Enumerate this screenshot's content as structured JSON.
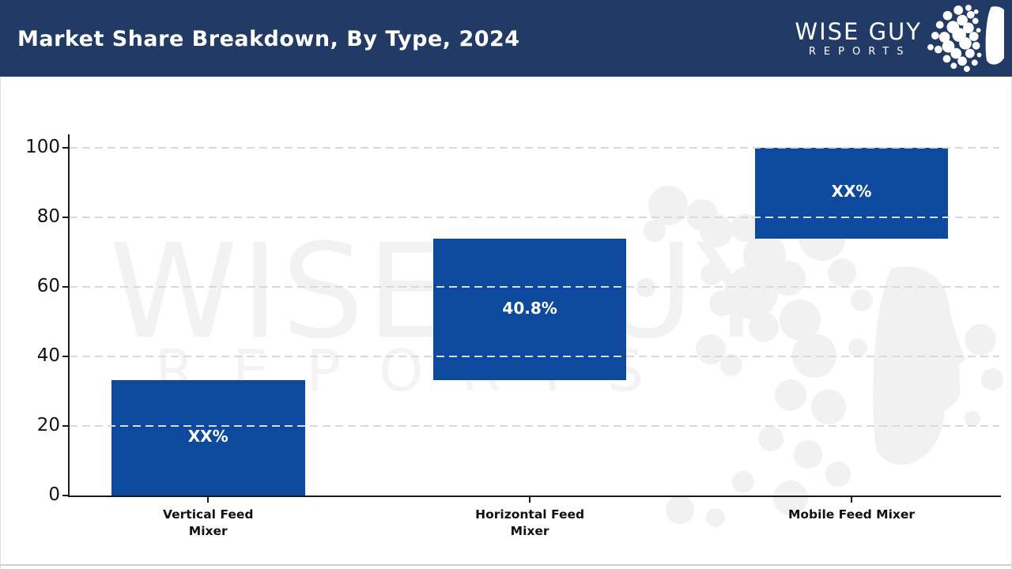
{
  "header": {
    "title": "Market Share Breakdown, By Type, 2024",
    "logo": {
      "line1": "WISE GUY",
      "line2": "REPORTS"
    }
  },
  "watermark": {
    "line1": "WISE GUY",
    "line2": "REPORTS"
  },
  "colors": {
    "header_bg": "#213a66",
    "bar": "#0d4a9e",
    "grid": "#d9d9d9",
    "axis": "#1a1a1a",
    "bar_label_text": "#ffffff",
    "watermark_gray": "#f2f2f2"
  },
  "chart_data": {
    "type": "bar",
    "subtype": "floating-stacked-segments",
    "title": "Market Share Breakdown, By Type, 2024",
    "categories": [
      "Vertical Feed Mixer",
      "Horizontal Feed Mixer",
      "Mobile Feed Mixer"
    ],
    "category_lines": [
      [
        "Vertical Feed",
        "Mixer"
      ],
      [
        "Horizontal Feed",
        "Mixer"
      ],
      [
        "Mobile Feed Mixer"
      ]
    ],
    "series": [
      {
        "name": "Market share (%)",
        "segments": [
          {
            "category": "Vertical Feed Mixer",
            "start": 0,
            "end": 33.1,
            "label": "XX%"
          },
          {
            "category": "Horizontal Feed Mixer",
            "start": 33.1,
            "end": 73.9,
            "label": "40.8%"
          },
          {
            "category": "Mobile Feed Mixer",
            "start": 73.9,
            "end": 100,
            "label": "XX%"
          }
        ]
      }
    ],
    "ylim": [
      0,
      100
    ],
    "yticks": [
      0,
      20,
      40,
      60,
      80,
      100
    ],
    "xlabel": "",
    "ylabel": "",
    "grid": "horizontal-dashed",
    "legend": "none"
  }
}
